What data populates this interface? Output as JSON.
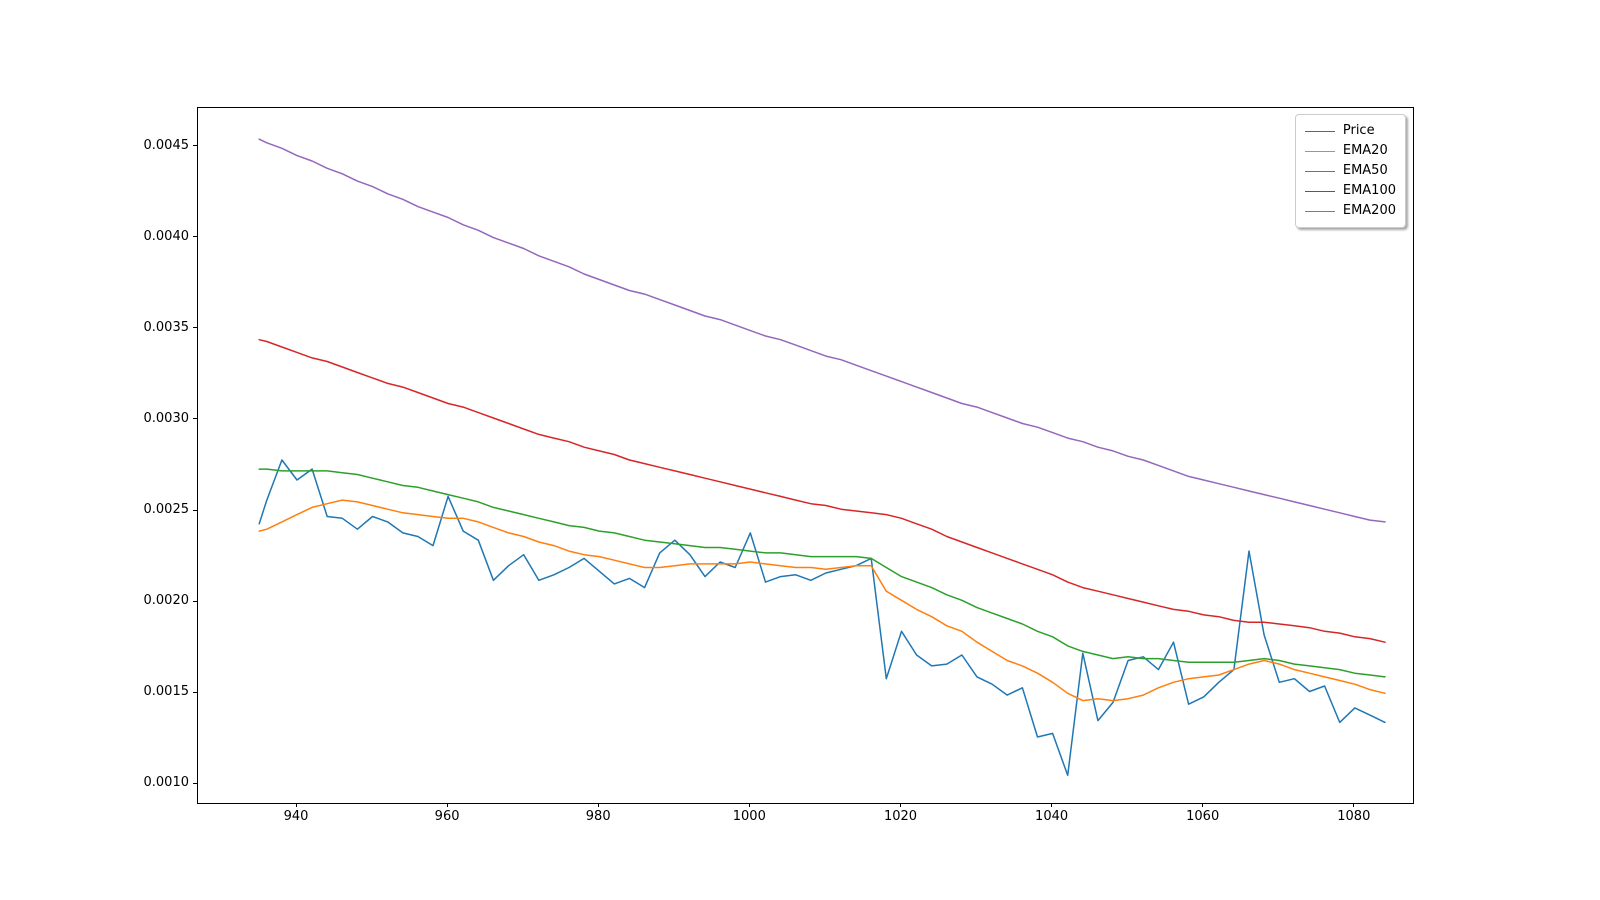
{
  "figure": {
    "background": "#ffffff",
    "frame_color": "#000000",
    "legend_border_color": "#cccccc"
  },
  "chart_data": {
    "type": "line",
    "title": "",
    "xlabel": "",
    "ylabel": "",
    "grid": false,
    "legend_position": "upper right",
    "xlim": [
      926.9,
      1087.7
    ],
    "ylim": [
      0.000898,
      0.004711
    ],
    "x_ticks": {
      "values": [
        940,
        960,
        980,
        1000,
        1020,
        1040,
        1060,
        1080
      ],
      "labels": [
        "940",
        "960",
        "980",
        "1000",
        "1020",
        "1040",
        "1060",
        "1080"
      ]
    },
    "y_ticks": {
      "values": [
        0.001,
        0.0015,
        0.002,
        0.0025,
        0.003,
        0.0035,
        0.004,
        0.0045
      ],
      "labels": [
        "0.0010",
        "0.0015",
        "0.0020",
        "0.0025",
        "0.0030",
        "0.0035",
        "0.0040",
        "0.0045"
      ]
    },
    "x": [
      935,
      936,
      938,
      940,
      942,
      944,
      946,
      948,
      950,
      952,
      954,
      956,
      958,
      960,
      962,
      964,
      966,
      968,
      970,
      972,
      974,
      976,
      978,
      980,
      982,
      984,
      986,
      988,
      990,
      992,
      994,
      996,
      998,
      1000,
      1002,
      1004,
      1006,
      1008,
      1010,
      1012,
      1014,
      1016,
      1018,
      1020,
      1022,
      1024,
      1026,
      1028,
      1030,
      1032,
      1034,
      1036,
      1038,
      1040,
      1042,
      1044,
      1046,
      1048,
      1050,
      1052,
      1054,
      1056,
      1058,
      1060,
      1062,
      1064,
      1066,
      1068,
      1070,
      1072,
      1074,
      1076,
      1078,
      1080,
      1082,
      1084
    ],
    "series": [
      {
        "name": "Price",
        "color": "#1f77b4",
        "values": [
          0.00243,
          0.00256,
          0.00278,
          0.00267,
          0.00273,
          0.00247,
          0.00246,
          0.0024,
          0.00247,
          0.00244,
          0.00238,
          0.00236,
          0.00231,
          0.00258,
          0.00239,
          0.00234,
          0.00212,
          0.0022,
          0.00226,
          0.00212,
          0.00215,
          0.00219,
          0.00224,
          0.00217,
          0.0021,
          0.00213,
          0.00208,
          0.00227,
          0.00234,
          0.00226,
          0.00214,
          0.00222,
          0.00219,
          0.00238,
          0.00211,
          0.00214,
          0.00215,
          0.00212,
          0.00216,
          0.00218,
          0.0022,
          0.00224,
          0.00158,
          0.00184,
          0.00171,
          0.00165,
          0.00166,
          0.00171,
          0.00159,
          0.00155,
          0.00149,
          0.00153,
          0.00126,
          0.00128,
          0.00105,
          0.00172,
          0.00135,
          0.00145,
          0.00168,
          0.0017,
          0.00163,
          0.00178,
          0.00144,
          0.00148,
          0.00156,
          0.00163,
          0.00228,
          0.00182,
          0.00156,
          0.00158,
          0.00151,
          0.00154,
          0.00134,
          0.00142,
          0.00138,
          0.00134
        ]
      },
      {
        "name": "EMA20",
        "color": "#ff7f0e",
        "values": [
          0.00239,
          0.0024,
          0.00244,
          0.00248,
          0.00252,
          0.00254,
          0.00256,
          0.00255,
          0.00253,
          0.00251,
          0.00249,
          0.00248,
          0.00247,
          0.00246,
          0.00246,
          0.00244,
          0.00241,
          0.00238,
          0.00236,
          0.00233,
          0.00231,
          0.00228,
          0.00226,
          0.00225,
          0.00223,
          0.00221,
          0.00219,
          0.00219,
          0.0022,
          0.00221,
          0.00221,
          0.00221,
          0.00221,
          0.00222,
          0.00221,
          0.0022,
          0.00219,
          0.00219,
          0.00218,
          0.00219,
          0.0022,
          0.0022,
          0.00206,
          0.00201,
          0.00196,
          0.00192,
          0.00187,
          0.00184,
          0.00178,
          0.00173,
          0.00168,
          0.00165,
          0.00161,
          0.00156,
          0.0015,
          0.00146,
          0.00147,
          0.00146,
          0.00147,
          0.00149,
          0.00153,
          0.00156,
          0.00158,
          0.00159,
          0.0016,
          0.00163,
          0.00166,
          0.00168,
          0.00166,
          0.00163,
          0.00161,
          0.00159,
          0.00157,
          0.00155,
          0.00152,
          0.0015
        ]
      },
      {
        "name": "EMA50",
        "color": "#2ca02c",
        "values": [
          0.00273,
          0.00273,
          0.00272,
          0.00272,
          0.00272,
          0.00272,
          0.00271,
          0.0027,
          0.00268,
          0.00266,
          0.00264,
          0.00263,
          0.00261,
          0.00259,
          0.00257,
          0.00255,
          0.00252,
          0.0025,
          0.00248,
          0.00246,
          0.00244,
          0.00242,
          0.00241,
          0.00239,
          0.00238,
          0.00236,
          0.00234,
          0.00233,
          0.00232,
          0.00231,
          0.0023,
          0.0023,
          0.00229,
          0.00228,
          0.00227,
          0.00227,
          0.00226,
          0.00225,
          0.00225,
          0.00225,
          0.00225,
          0.00224,
          0.00219,
          0.00214,
          0.00211,
          0.00208,
          0.00204,
          0.00201,
          0.00197,
          0.00194,
          0.00191,
          0.00188,
          0.00184,
          0.00181,
          0.00176,
          0.00173,
          0.00171,
          0.00169,
          0.0017,
          0.00169,
          0.00169,
          0.00168,
          0.00167,
          0.00167,
          0.00167,
          0.00167,
          0.00168,
          0.00169,
          0.00168,
          0.00166,
          0.00165,
          0.00164,
          0.00163,
          0.00161,
          0.0016,
          0.00159
        ]
      },
      {
        "name": "EMA100",
        "color": "#d62728",
        "values": [
          0.00344,
          0.00343,
          0.0034,
          0.00337,
          0.00334,
          0.00332,
          0.00329,
          0.00326,
          0.00323,
          0.0032,
          0.00318,
          0.00315,
          0.00312,
          0.00309,
          0.00307,
          0.00304,
          0.00301,
          0.00298,
          0.00295,
          0.00292,
          0.0029,
          0.00288,
          0.00285,
          0.00283,
          0.00281,
          0.00278,
          0.00276,
          0.00274,
          0.00272,
          0.0027,
          0.00268,
          0.00266,
          0.00264,
          0.00262,
          0.0026,
          0.00258,
          0.00256,
          0.00254,
          0.00253,
          0.00251,
          0.0025,
          0.00249,
          0.00248,
          0.00246,
          0.00243,
          0.0024,
          0.00236,
          0.00233,
          0.0023,
          0.00227,
          0.00224,
          0.00221,
          0.00218,
          0.00215,
          0.00211,
          0.00208,
          0.00206,
          0.00204,
          0.00202,
          0.002,
          0.00198,
          0.00196,
          0.00195,
          0.00193,
          0.00192,
          0.0019,
          0.00189,
          0.00189,
          0.00188,
          0.00187,
          0.00186,
          0.00184,
          0.00183,
          0.00181,
          0.0018,
          0.00178
        ]
      },
      {
        "name": "EMA200",
        "color": "#9467bd",
        "values": [
          0.00454,
          0.00452,
          0.00449,
          0.00445,
          0.00442,
          0.00438,
          0.00435,
          0.00431,
          0.00428,
          0.00424,
          0.00421,
          0.00417,
          0.00414,
          0.00411,
          0.00407,
          0.00404,
          0.004,
          0.00397,
          0.00394,
          0.0039,
          0.00387,
          0.00384,
          0.0038,
          0.00377,
          0.00374,
          0.00371,
          0.00369,
          0.00366,
          0.00363,
          0.0036,
          0.00357,
          0.00355,
          0.00352,
          0.00349,
          0.00346,
          0.00344,
          0.00341,
          0.00338,
          0.00335,
          0.00333,
          0.0033,
          0.00327,
          0.00324,
          0.00321,
          0.00318,
          0.00315,
          0.00312,
          0.00309,
          0.00307,
          0.00304,
          0.00301,
          0.00298,
          0.00296,
          0.00293,
          0.0029,
          0.00288,
          0.00285,
          0.00283,
          0.0028,
          0.00278,
          0.00275,
          0.00272,
          0.00269,
          0.00267,
          0.00265,
          0.00263,
          0.00261,
          0.00259,
          0.00257,
          0.00255,
          0.00253,
          0.00251,
          0.00249,
          0.00247,
          0.00245,
          0.00244
        ]
      }
    ]
  }
}
